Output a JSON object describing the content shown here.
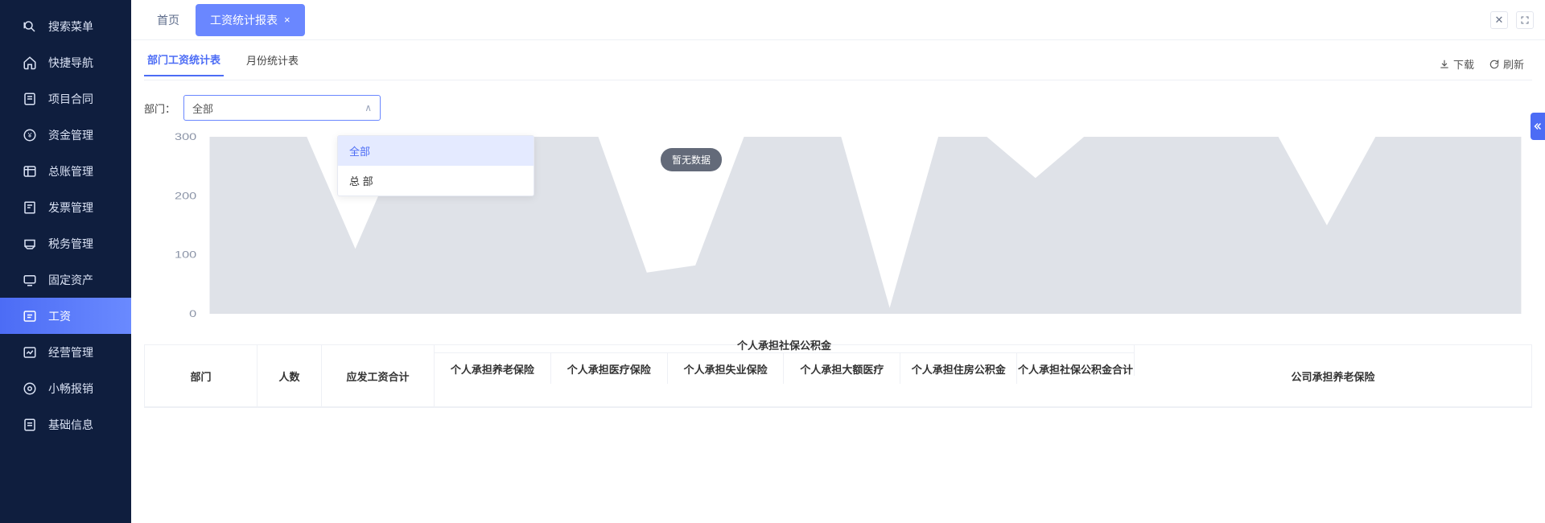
{
  "sidebar": {
    "items": [
      {
        "label": "搜索菜单",
        "icon": "search"
      },
      {
        "label": "快捷导航",
        "icon": "home"
      },
      {
        "label": "项目合同",
        "icon": "doc"
      },
      {
        "label": "资金管理",
        "icon": "money"
      },
      {
        "label": "总账管理",
        "icon": "ledger"
      },
      {
        "label": "发票管理",
        "icon": "invoice"
      },
      {
        "label": "税务管理",
        "icon": "tax"
      },
      {
        "label": "固定资产",
        "icon": "asset"
      },
      {
        "label": "工资",
        "icon": "salary",
        "active": true
      },
      {
        "label": "经营管理",
        "icon": "biz"
      },
      {
        "label": "小畅报销",
        "icon": "reimburse"
      },
      {
        "label": "基础信息",
        "icon": "info"
      }
    ]
  },
  "topbar": {
    "home": "首页",
    "active_tab": "工资统计报表"
  },
  "subtabs": {
    "items": [
      {
        "label": "部门工资统计表",
        "active": true
      },
      {
        "label": "月份统计表",
        "active": false
      }
    ],
    "download": "下载",
    "refresh": "刷新"
  },
  "filter": {
    "label": "部门：",
    "value": "全部",
    "options": [
      "全部",
      "总 部"
    ]
  },
  "chart": {
    "type": "area",
    "yticks": [
      0,
      100,
      200,
      300
    ],
    "ylim": [
      0,
      300
    ],
    "tooltip": "暂无数据",
    "fill_color": "#dfe2e8",
    "background": "#ffffff",
    "axis_color": "#8a93a6",
    "axis_fontsize": 12,
    "data_points": [
      300,
      300,
      300,
      110,
      300,
      300,
      300,
      300,
      300,
      70,
      82,
      300,
      300,
      300,
      10,
      300,
      300,
      230,
      300,
      300,
      300,
      300,
      300,
      150,
      300,
      300,
      300,
      300
    ]
  },
  "table": {
    "col1": "部门",
    "col2": "人数",
    "col3": "应发工资合计",
    "group_title": "个人承担社保公积金",
    "group_cols": [
      "个人承担养老保险",
      "个人承担医疗保险",
      "个人承担失业保险",
      "个人承担大额医疗",
      "个人承担住房公积金",
      "个人承担社保公积金合计"
    ],
    "extra_col": "公司承担养老保险"
  },
  "colors": {
    "sidebar_bg": "#0f1e3e",
    "accent": "#4c6cf5",
    "tab_bg": "#6a87ff"
  }
}
